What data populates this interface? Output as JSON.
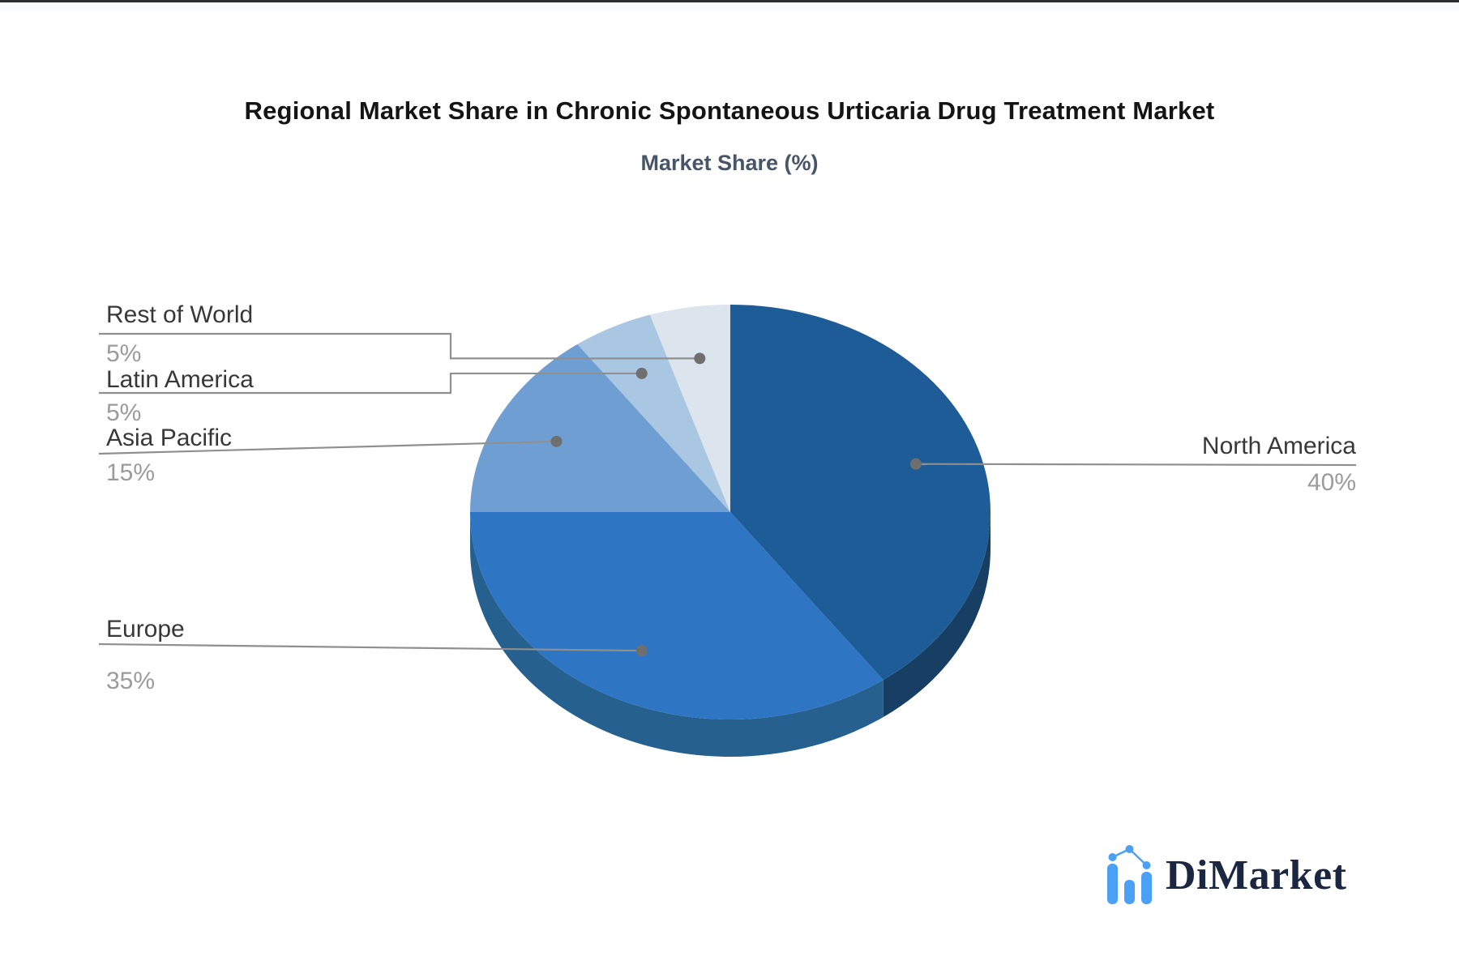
{
  "title": "Regional Market Share in Chronic Spontaneous Urticaria Drug Treatment Market",
  "subtitle": "Market Share (%)",
  "brand": {
    "name": "DiMarket"
  },
  "chart_data": {
    "type": "pie",
    "style": "3d",
    "title": "Regional Market Share in Chronic Spontaneous Urticaria Drug Treatment Market",
    "subtitle": "Market Share (%)",
    "unit": "%",
    "start_angle_deg": 0,
    "direction": "clockwise",
    "legend_position": "callout-labels",
    "slices": [
      {
        "label": "North America",
        "value": 40,
        "display": "40%",
        "color": "#1d5c96",
        "side_color": "#173e63"
      },
      {
        "label": "Europe",
        "value": 35,
        "display": "35%",
        "color": "#2e75c3",
        "side_color": "#26608e"
      },
      {
        "label": "Asia Pacific",
        "value": 15,
        "display": "15%",
        "color": "#6f9fd2",
        "side_color": "#587ea6"
      },
      {
        "label": "Latin America",
        "value": 5,
        "display": "5%",
        "color": "#a9c6e2",
        "side_color": "#879eb4"
      },
      {
        "label": "Rest of World",
        "value": 5,
        "display": "5%",
        "color": "#dce4ee",
        "side_color": "#b0b6be"
      }
    ],
    "callout_line_color": "#8f8f8f",
    "callout_dot_color": "#6f6f6f"
  }
}
